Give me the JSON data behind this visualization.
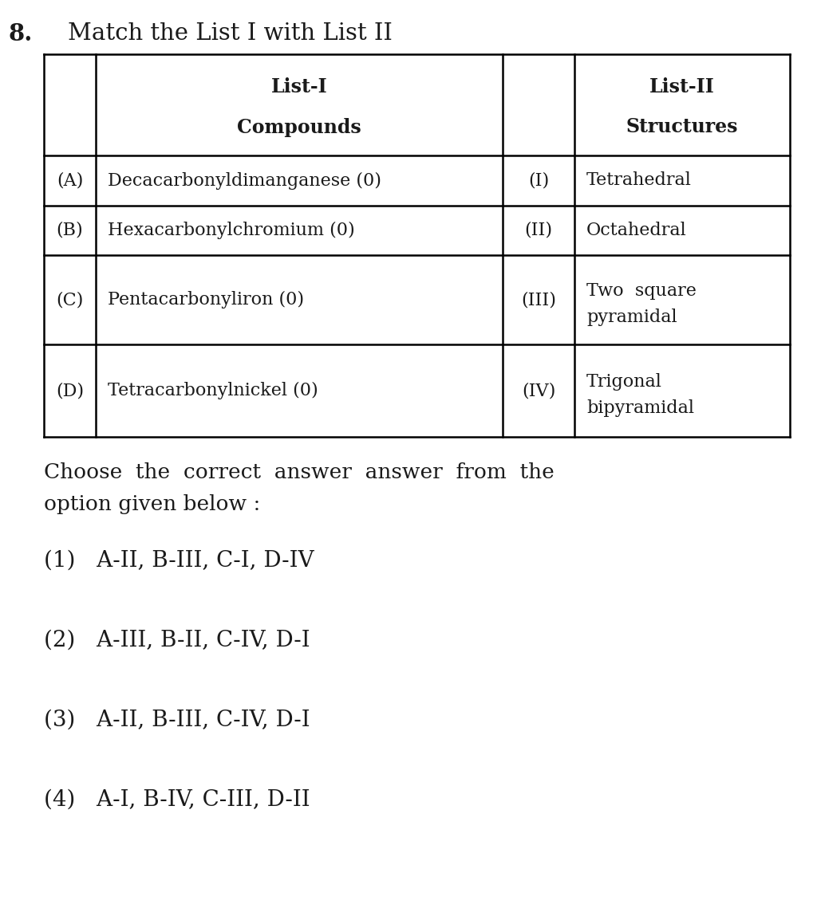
{
  "question_number": "8.",
  "question_text": "Match the List I with List II",
  "background_color": "#ffffff",
  "text_color": "#1a1a1a",
  "table": {
    "rows": [
      {
        "col1": "(A)",
        "col2": "Decacarbonyldimanganese (0)",
        "col3": "(I)",
        "col4": "Tetrahedral"
      },
      {
        "col1": "(B)",
        "col2": "Hexacarbonylchromium (0)",
        "col3": "(II)",
        "col4": "Octahedral"
      },
      {
        "col1": "(C)",
        "col2": "Pentacarbonyliron (0)",
        "col3": "(III)",
        "col4_line1": "Two  square",
        "col4_line2": "pyramidal"
      },
      {
        "col1": "(D)",
        "col2": "Tetracarbonylnickel (0)",
        "col3": "(IV)",
        "col4_line1": "Trigonal",
        "col4_line2": "bipyramidal"
      }
    ]
  },
  "footer_line1": "Choose  the  correct  answer  answer  from  the",
  "footer_line2": "option given below :",
  "options": [
    "(1)   A-II, B-III, C-I, D-IV",
    "(2)   A-III, B-II, C-IV, D-I",
    "(3)   A-II, B-III, C-IV, D-I",
    "(4)   A-I, B-IV, C-III, D-II"
  ],
  "font_size_question": 21,
  "font_size_table_header": 17,
  "font_size_table_body": 16,
  "font_size_footer": 19,
  "font_size_options": 20,
  "fig_width": 10.24,
  "fig_height": 11.44,
  "dpi": 100
}
